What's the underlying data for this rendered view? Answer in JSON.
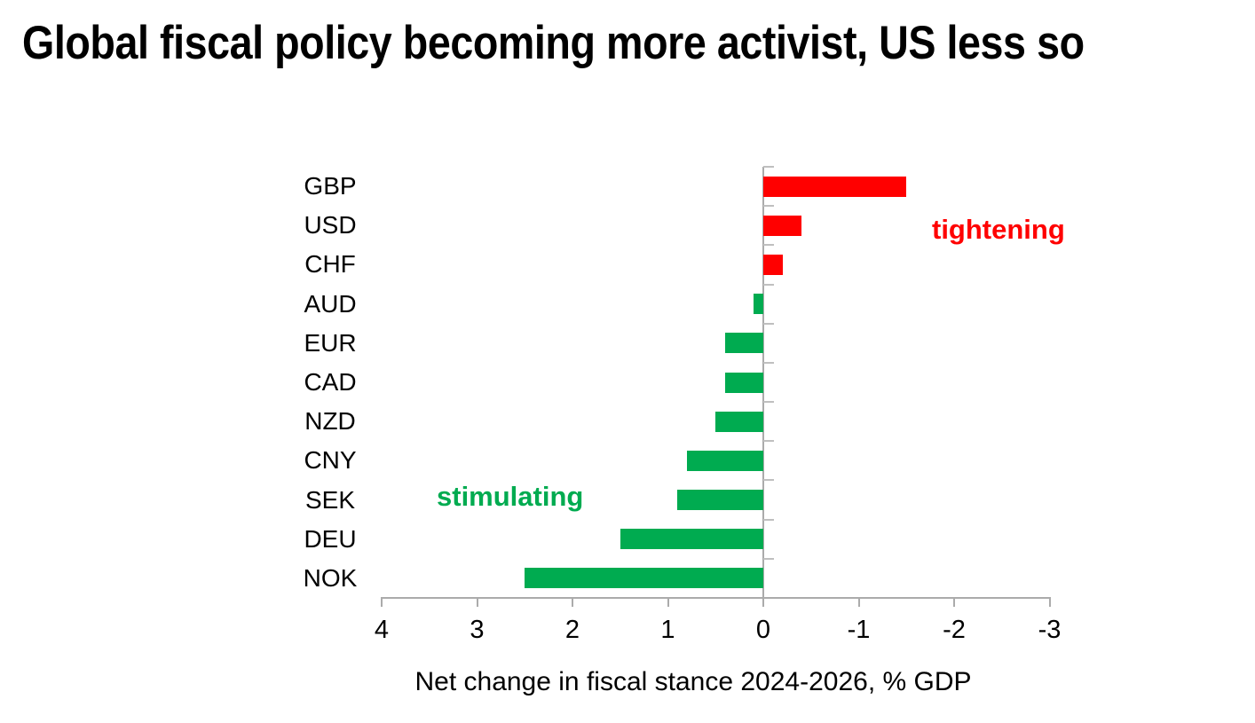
{
  "title": "Global fiscal policy becoming more activist, US less so",
  "colors": {
    "tightening_red": "#FF0000",
    "stimulating_green": "#00AB50",
    "axis_gray": "#ABABAB",
    "tick_gray": "#BFBFBF",
    "text_black": "#000000"
  },
  "annotations": {
    "tightening": {
      "text": "tightening",
      "color": "#FF0000"
    },
    "stimulating": {
      "text": "stimulating",
      "color": "#00AB50"
    }
  },
  "chart_data": {
    "type": "bar",
    "orientation": "horizontal",
    "title": "Global fiscal policy becoming more activist, US less so",
    "xlabel": "Net change in fiscal stance 2024-2026, % GDP",
    "categories": [
      "GBP",
      "USD",
      "CHF",
      "AUD",
      "EUR",
      "CAD",
      "NZD",
      "CNY",
      "SEK",
      "DEU",
      "NOK"
    ],
    "values": [
      -1.5,
      -0.4,
      -0.2,
      0.1,
      0.4,
      0.4,
      0.5,
      0.8,
      0.9,
      1.5,
      2.5
    ],
    "value_meaning": "positive = stimulating (green, drawn left), negative = tightening (red, drawn right)",
    "x_ticks": [
      4,
      3,
      2,
      1,
      0,
      -1,
      -2,
      -3
    ],
    "xlim": [
      4,
      -3
    ],
    "axis_reversed": true,
    "grid": false,
    "legend": "none",
    "bar_colors": {
      "positive": "#00AB50",
      "negative": "#FF0000"
    }
  }
}
